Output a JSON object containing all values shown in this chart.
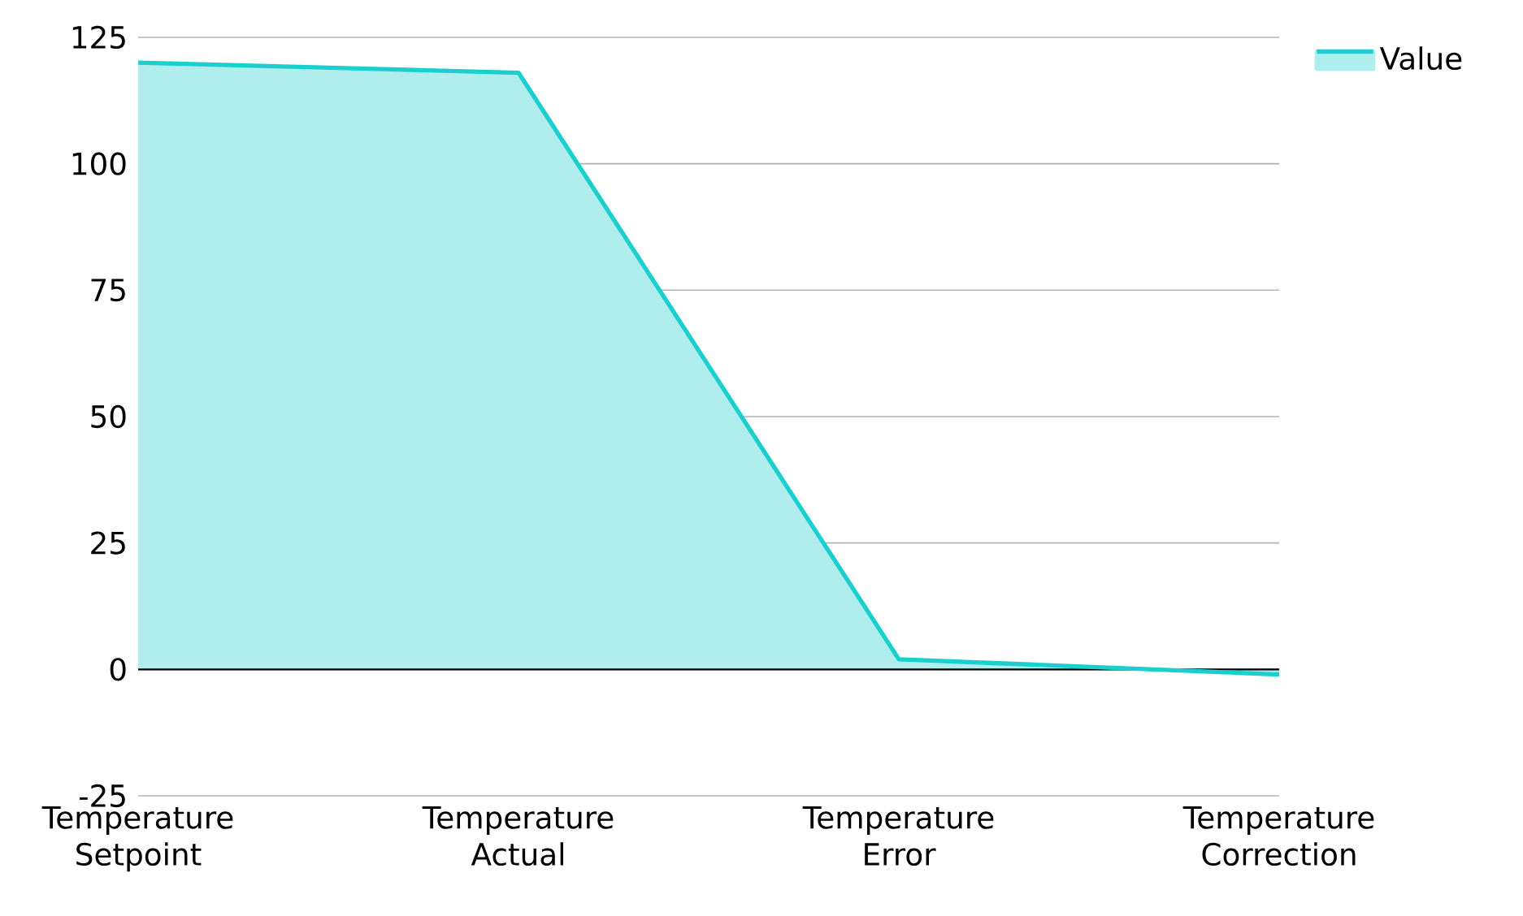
{
  "chart_data": {
    "type": "area",
    "categories": [
      "Temperature Setpoint",
      "Temperature Actual",
      "Temperature Error",
      "Temperature Correction"
    ],
    "series": [
      {
        "name": "Value",
        "color": "#1ccfcf",
        "values": [
          120,
          118,
          2,
          -1
        ]
      }
    ],
    "ylim": [
      -25,
      125
    ],
    "yticks": [
      -25,
      0,
      25,
      50,
      75,
      100,
      125
    ],
    "grid": "y",
    "legend": "top right"
  }
}
